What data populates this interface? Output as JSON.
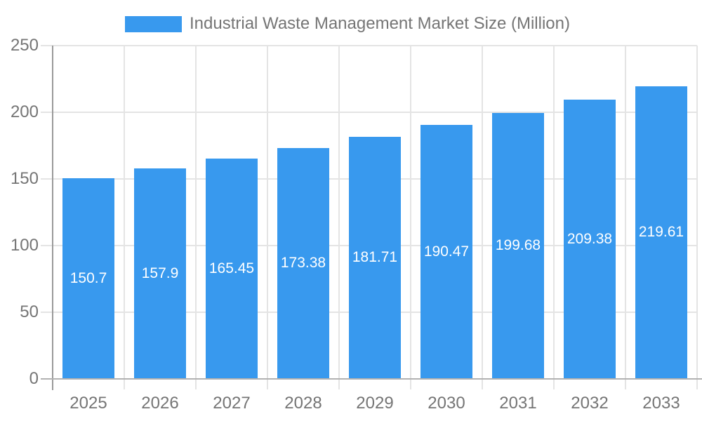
{
  "chart_data": {
    "type": "bar",
    "title": "Industrial Waste Management Market Size (Million)",
    "categories": [
      "2025",
      "2026",
      "2027",
      "2028",
      "2029",
      "2030",
      "2031",
      "2032",
      "2033"
    ],
    "values": [
      150.7,
      157.9,
      165.45,
      173.38,
      181.71,
      190.47,
      199.68,
      209.38,
      219.61
    ],
    "xlabel": "",
    "ylabel": "",
    "ylim": [
      0,
      250
    ],
    "yticks": [
      0,
      50,
      100,
      150,
      200,
      250
    ],
    "grid": true,
    "legend_position": "top-center",
    "bar_color": "#3899EE",
    "bar_label_color": "#ffffff",
    "axis_text_color": "#757575",
    "gridline_color": "#e4e4e4"
  }
}
